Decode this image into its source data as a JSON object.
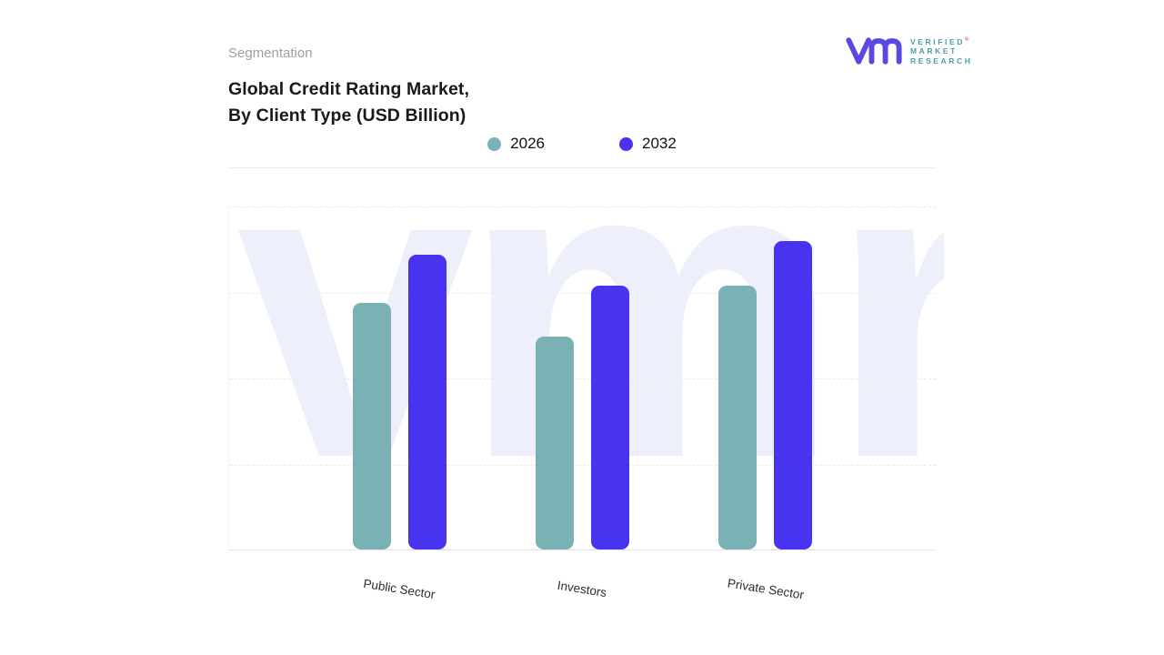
{
  "header": {
    "eyebrow": "Segmentation",
    "title_line1": "Global Credit Rating Market,",
    "title_line2": "By Client Type (USD Billion)"
  },
  "logo": {
    "line1": "VERIFIED",
    "line2": "MARKET",
    "line3": "RESEARCH",
    "registered_mark": "®",
    "monogram_color": "#5a49e0",
    "text_color": "#49a0a5"
  },
  "watermark_text": "vmr",
  "chart_data": {
    "type": "bar",
    "title": "Global Credit Rating Market, By Client Type (USD Billion)",
    "categories": [
      "Public Sector",
      "Investors",
      "Private Sector"
    ],
    "series": [
      {
        "name": "2026",
        "color": "#79b1b5",
        "values": [
          72,
          62,
          77
        ]
      },
      {
        "name": "2032",
        "color": "#4733f0",
        "values": [
          86,
          77,
          90
        ]
      }
    ],
    "ylim": [
      0,
      100
    ],
    "xlabel": "",
    "ylabel": "",
    "unit": "USD Billion",
    "legend_position": "top",
    "grid": "horizontal-dashed",
    "note": "y-axis unlabeled; values estimated from bar heights on a 0-100 relative scale"
  }
}
